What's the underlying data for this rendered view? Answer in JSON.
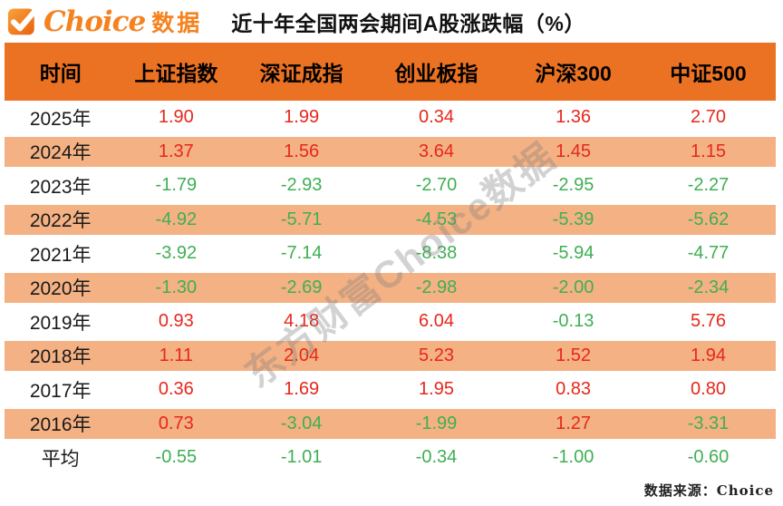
{
  "logo": {
    "brand": "Choice",
    "suffix": "数据"
  },
  "watermark": "东方财富Choice数据",
  "source": "数据来源：Choice",
  "colors": {
    "header_bg": "#EC7223",
    "row_alt_bg": "#F4B183",
    "positive_red": "#E7271B",
    "negative_green": "#3FAF54",
    "brand_orange": "#F5821F"
  },
  "chart_data": {
    "type": "table",
    "title": "近十年全国两会期间A股涨跌幅（%）",
    "columns": [
      "时间",
      "上证指数",
      "深证成指",
      "创业板指",
      "沪深300",
      "中证500"
    ],
    "rows": [
      {
        "label": "2025年",
        "values": [
          "1.90",
          "1.99",
          "0.34",
          "1.36",
          "2.70"
        ]
      },
      {
        "label": "2024年",
        "values": [
          "1.37",
          "1.56",
          "3.64",
          "1.45",
          "1.15"
        ]
      },
      {
        "label": "2023年",
        "values": [
          "-1.79",
          "-2.93",
          "-2.70",
          "-2.95",
          "-2.27"
        ]
      },
      {
        "label": "2022年",
        "values": [
          "-4.92",
          "-5.71",
          "-4.53",
          "-5.39",
          "-5.62"
        ]
      },
      {
        "label": "2021年",
        "values": [
          "-3.92",
          "-7.14",
          "-8.38",
          "-5.94",
          "-4.77"
        ]
      },
      {
        "label": "2020年",
        "values": [
          "-1.30",
          "-2.69",
          "-2.98",
          "-2.00",
          "-2.34"
        ]
      },
      {
        "label": "2019年",
        "values": [
          "0.93",
          "4.18",
          "6.04",
          "-0.13",
          "5.76"
        ]
      },
      {
        "label": "2018年",
        "values": [
          "1.11",
          "2.04",
          "5.23",
          "1.52",
          "1.94"
        ]
      },
      {
        "label": "2017年",
        "values": [
          "0.36",
          "1.69",
          "1.95",
          "0.83",
          "0.80"
        ]
      },
      {
        "label": "2016年",
        "values": [
          "0.73",
          "-3.04",
          "-1.99",
          "1.27",
          "-3.31"
        ]
      },
      {
        "label": "平均",
        "values": [
          "-0.55",
          "-1.01",
          "-0.34",
          "-1.00",
          "-0.60"
        ]
      }
    ]
  }
}
